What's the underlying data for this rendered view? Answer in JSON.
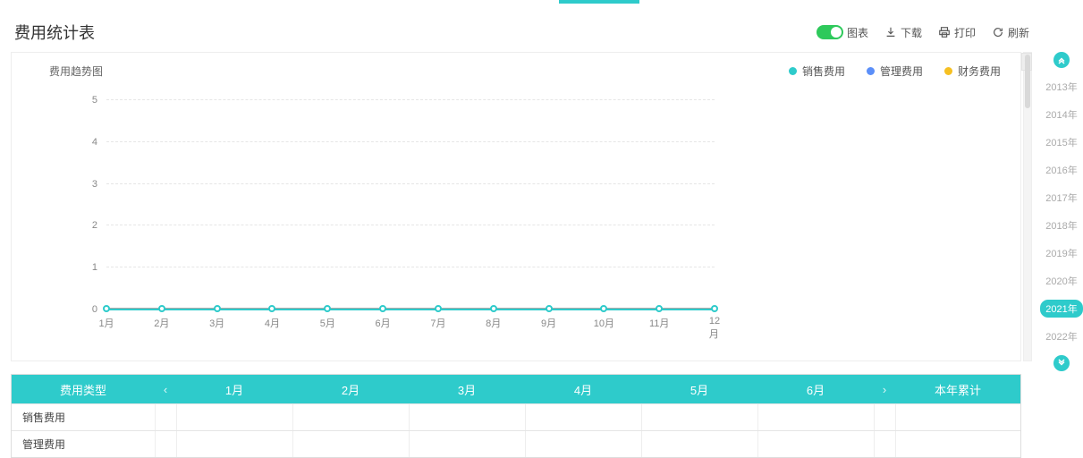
{
  "page": {
    "title": "费用统计表"
  },
  "toolbar": {
    "chart_toggle_label": "图表",
    "chart_toggle_on": true,
    "download_label": "下载",
    "print_label": "打印",
    "refresh_label": "刷新"
  },
  "chart": {
    "type": "line",
    "title": "费用趋势图",
    "background_color": "#ffffff",
    "grid_color": "#e6e6e6",
    "axis_color": "#aaaaaa",
    "label_color": "#888888",
    "label_fontsize": 11,
    "x_categories": [
      "1月",
      "2月",
      "3月",
      "4月",
      "5月",
      "6月",
      "7月",
      "8月",
      "9月",
      "10月",
      "11月",
      "12月"
    ],
    "ylim": [
      0,
      5
    ],
    "yticks": [
      0,
      1,
      2,
      3,
      4,
      5
    ],
    "series": [
      {
        "name": "销售费用",
        "color": "#2ecbcb",
        "visible": true,
        "values": [
          0,
          0,
          0,
          0,
          0,
          0,
          0,
          0,
          0,
          0,
          0,
          0
        ]
      },
      {
        "name": "管理费用",
        "color": "#5b8ff9",
        "visible": false,
        "values": [
          0,
          0,
          0,
          0,
          0,
          0,
          0,
          0,
          0,
          0,
          0,
          0
        ]
      },
      {
        "name": "财务费用",
        "color": "#f6c022",
        "visible": false,
        "values": [
          0,
          0,
          0,
          0,
          0,
          0,
          0,
          0,
          0,
          0,
          0,
          0
        ]
      }
    ],
    "marker_style": "hollow-circle",
    "marker_size": 8,
    "line_width": 2
  },
  "table": {
    "header_bg": "#2ecbcb",
    "header_fg": "#ffffff",
    "first_col_header": "费用类型",
    "last_col_header": "本年累计",
    "month_columns": [
      "1月",
      "2月",
      "3月",
      "4月",
      "5月",
      "6月"
    ],
    "rows": [
      {
        "label": "销售费用",
        "cells": [
          "",
          "",
          "",
          "",
          "",
          ""
        ],
        "total": ""
      },
      {
        "label": "管理费用",
        "cells": [
          "",
          "",
          "",
          "",
          "",
          ""
        ],
        "total": ""
      }
    ]
  },
  "year_rail": {
    "years": [
      "2013年",
      "2014年",
      "2015年",
      "2016年",
      "2017年",
      "2018年",
      "2019年",
      "2020年",
      "2021年",
      "2022年"
    ],
    "active": "2021年"
  }
}
